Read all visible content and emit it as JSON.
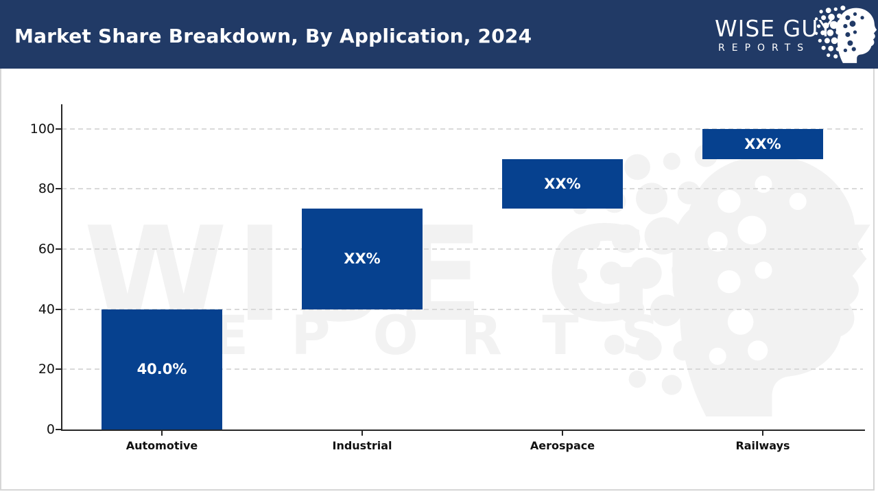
{
  "header": {
    "title": "Market Share Breakdown, By Application, 2024",
    "logo": {
      "line1": "WISE GUY",
      "line2": "REPORTS"
    }
  },
  "watermark": {
    "line1": "WISE GUY",
    "line2": "REPORTS"
  },
  "chart_data": {
    "type": "bar",
    "subtype": "waterfall",
    "title": "Market Share Breakdown, By Application, 2024",
    "categories": [
      "Automotive",
      "Industrial",
      "Aerospace",
      "Railways"
    ],
    "segments": [
      {
        "category": "Automotive",
        "start": 0,
        "end": 40,
        "label": "40.0%"
      },
      {
        "category": "Industrial",
        "start": 40,
        "end": 73.5,
        "label": "XX%"
      },
      {
        "category": "Aerospace",
        "start": 73.5,
        "end": 89.9,
        "label": "XX%"
      },
      {
        "category": "Railways",
        "start": 89.9,
        "end": 99.8,
        "label": "XX%"
      }
    ],
    "xlabel": "",
    "ylabel": "",
    "ylim": [
      0,
      100
    ],
    "yticks": [
      0,
      20,
      40,
      60,
      80,
      100
    ],
    "grid": "horizontal-dashed",
    "legend": "none",
    "colors": {
      "bar": "#06418F",
      "bar_label": "#FFFFFF",
      "grid_line": "#D9D9D9",
      "axis_line": "#262626",
      "tick_label": "#111111",
      "header_bg": "#213A66",
      "header_text": "#FFFFFF",
      "watermark": "#F2F2F2"
    }
  }
}
